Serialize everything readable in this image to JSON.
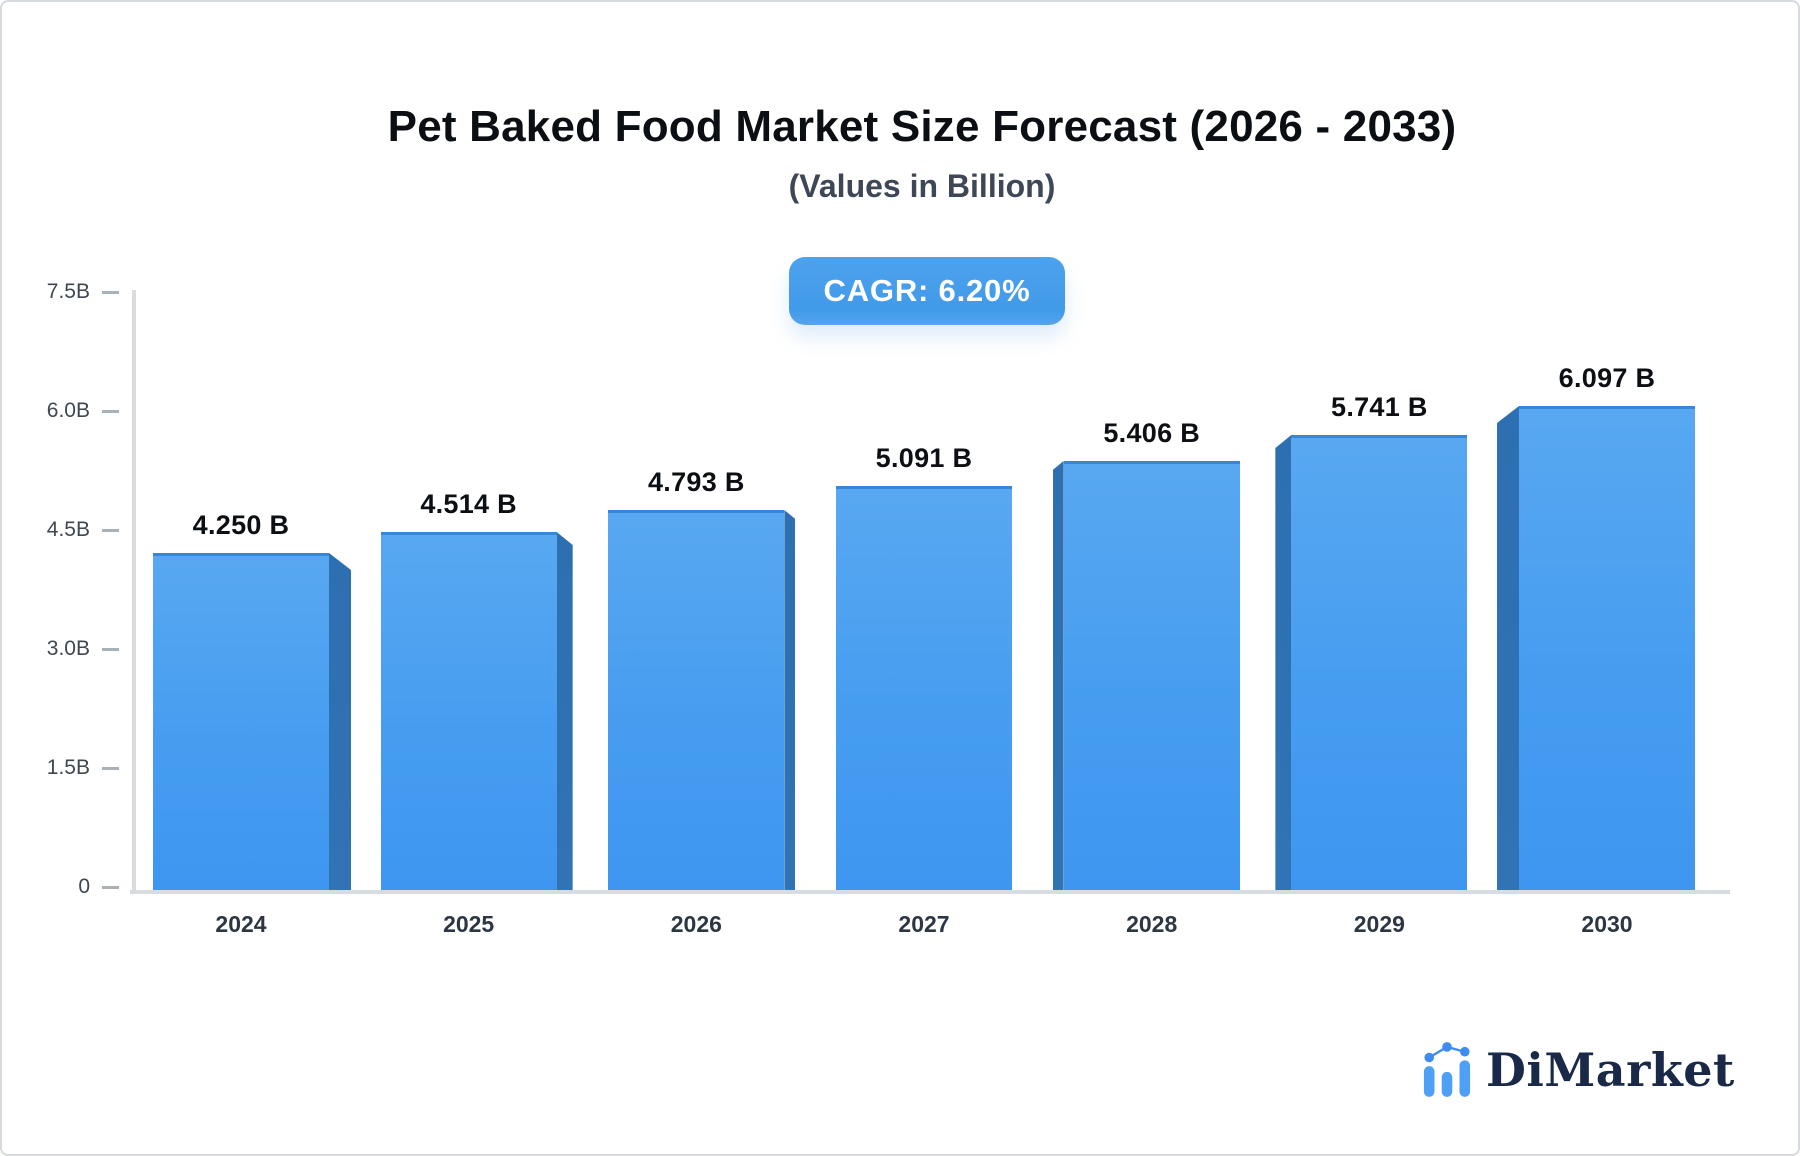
{
  "header": {
    "title": "Pet Baked Food Market Size Forecast (2026 - 2033)",
    "subtitle": "(Values in Billion)",
    "cagr_badge": "CAGR: 6.20%"
  },
  "chart_data": {
    "type": "bar",
    "title": "Pet Baked Food Market Size Forecast (2026 - 2033)",
    "subtitle": "(Values in Billion)",
    "unit": "Billion",
    "cagr": "6.20%",
    "categories": [
      "2024",
      "2025",
      "2026",
      "2027",
      "2028",
      "2029",
      "2030"
    ],
    "values": [
      4.25,
      4.514,
      4.793,
      5.091,
      5.406,
      5.741,
      6.097
    ],
    "value_labels": [
      "4.250 B",
      "4.514 B",
      "4.793 B",
      "5.091 B",
      "5.406 B",
      "5.741 B",
      "6.097 B"
    ],
    "ylim": [
      0,
      7.5
    ],
    "yticks": [
      {
        "label": "7.5B",
        "value": 7.5
      },
      {
        "label": "6.0B",
        "value": 6.0
      },
      {
        "label": "4.5B",
        "value": 4.5
      },
      {
        "label": "3.0B",
        "value": 3.0
      },
      {
        "label": "1.5B",
        "value": 1.5
      },
      {
        "label": "0",
        "value": 0
      }
    ],
    "grid": false,
    "legend": null,
    "style_3d": true,
    "colors": {
      "bar_front_top": "#58a8f1",
      "bar_front_bottom": "#3f96f0",
      "bar_side": "#3074b6",
      "axis_line": "#d8dbdf",
      "tick_dash": "#a9b0b8",
      "badge_background": "#459ae8",
      "badge_text": "#ffffff",
      "title_text": "#0b0f14",
      "subtitle_text": "#3e4756",
      "logo_blue": "#4da0f5",
      "logo_navy": "#1a2947"
    }
  },
  "branding": {
    "logo_text": "DiMarket",
    "logo_icon": "bar-chart-trend-icon"
  }
}
